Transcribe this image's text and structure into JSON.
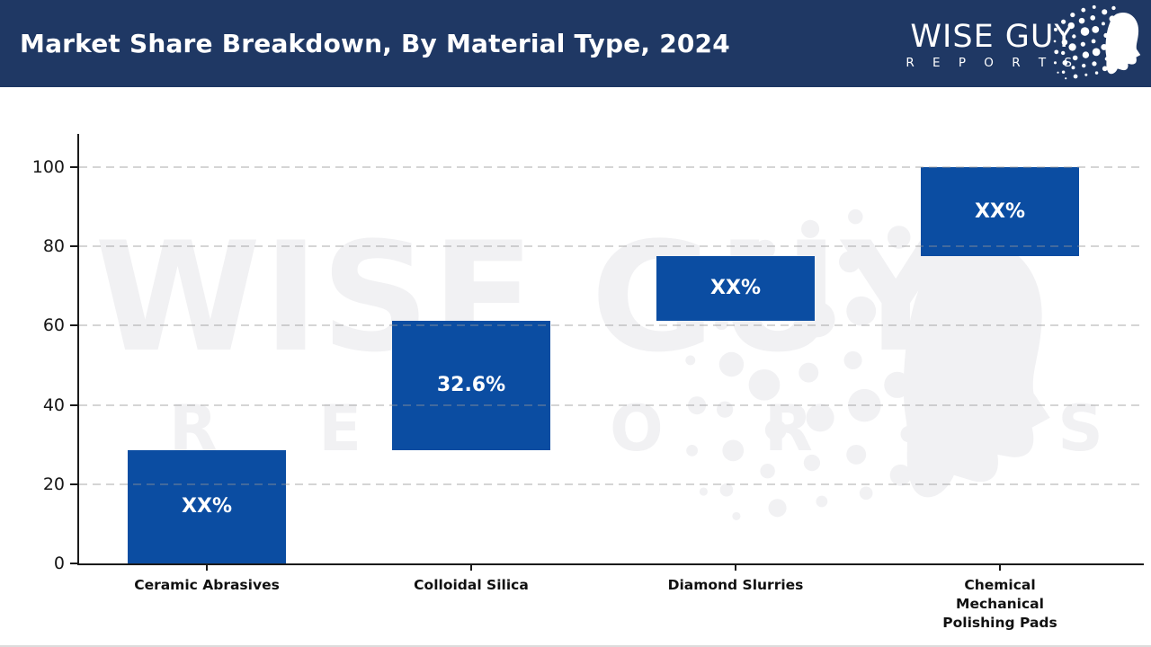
{
  "header": {
    "title": "Market Share Breakdown, By Material Type, 2024",
    "logo": {
      "line1": "WISE GUY",
      "line2": "R E P O R T S"
    }
  },
  "watermark": {
    "line1": "WISE GUY",
    "line2": "R E P O R T S"
  },
  "chart_data": {
    "type": "bar",
    "subtype": "waterfall-floating-bars",
    "title": "Market Share Breakdown, By Material Type, 2024",
    "categories": [
      "Ceramic Abrasives",
      "Colloidal Silica",
      "Diamond Slurries",
      "Chemical\nMechanical\nPolishing Pads"
    ],
    "segments": [
      {
        "category": "Ceramic Abrasives",
        "start": 0,
        "end": 28.6,
        "label": "XX%"
      },
      {
        "category": "Colloidal Silica",
        "start": 28.6,
        "end": 61.2,
        "label": "32.6%"
      },
      {
        "category": "Diamond Slurries",
        "start": 61.2,
        "end": 77.6,
        "label": "XX%"
      },
      {
        "category": "Chemical Mechanical Polishing Pads",
        "start": 77.6,
        "end": 100,
        "label": "XX%"
      }
    ],
    "ylim": [
      0,
      100
    ],
    "yticks": [
      0,
      20,
      40,
      60,
      80,
      100
    ],
    "xlabel": "",
    "ylabel": "",
    "grid": "horizontal-dashed",
    "legend": "none",
    "bar_color": "#0B4DA2",
    "bar_label_color": "#ffffff"
  },
  "colors": {
    "header_bg": "#1F3864",
    "bar": "#0B4DA2",
    "axis": "#1a1a1a",
    "grid": "#d8d8d8",
    "watermark": "#f1f1f3"
  }
}
